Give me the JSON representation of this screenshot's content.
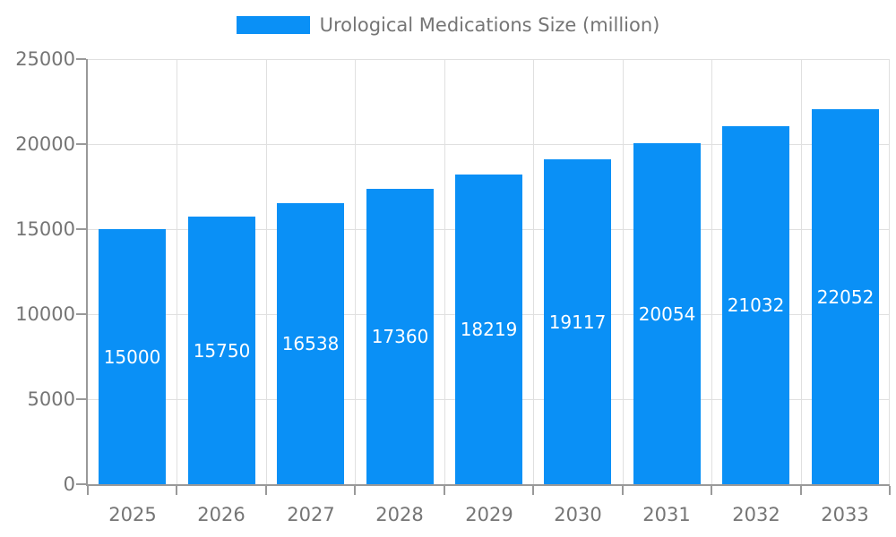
{
  "chart_data": {
    "type": "bar",
    "title": "Urological Medications Size (million)",
    "xlabel": "",
    "ylabel": "",
    "categories": [
      "2025",
      "2026",
      "2027",
      "2028",
      "2029",
      "2030",
      "2031",
      "2032",
      "2033"
    ],
    "values": [
      15000,
      15750,
      16538,
      17360,
      18219,
      19117,
      20054,
      21032,
      22052
    ],
    "ylim": [
      0,
      25000
    ],
    "yticks": [
      0,
      5000,
      10000,
      15000,
      20000,
      25000
    ],
    "grid": true,
    "legend_position": "top",
    "value_labels": "inside-center",
    "colors": {
      "bar": "#0a90f6",
      "grid_line": "#e0e0e0",
      "axis_line": "#999999",
      "tick_text": "#757575",
      "legend_text": "#757575",
      "value_label": "#ffffff",
      "background": "#ffffff"
    }
  }
}
